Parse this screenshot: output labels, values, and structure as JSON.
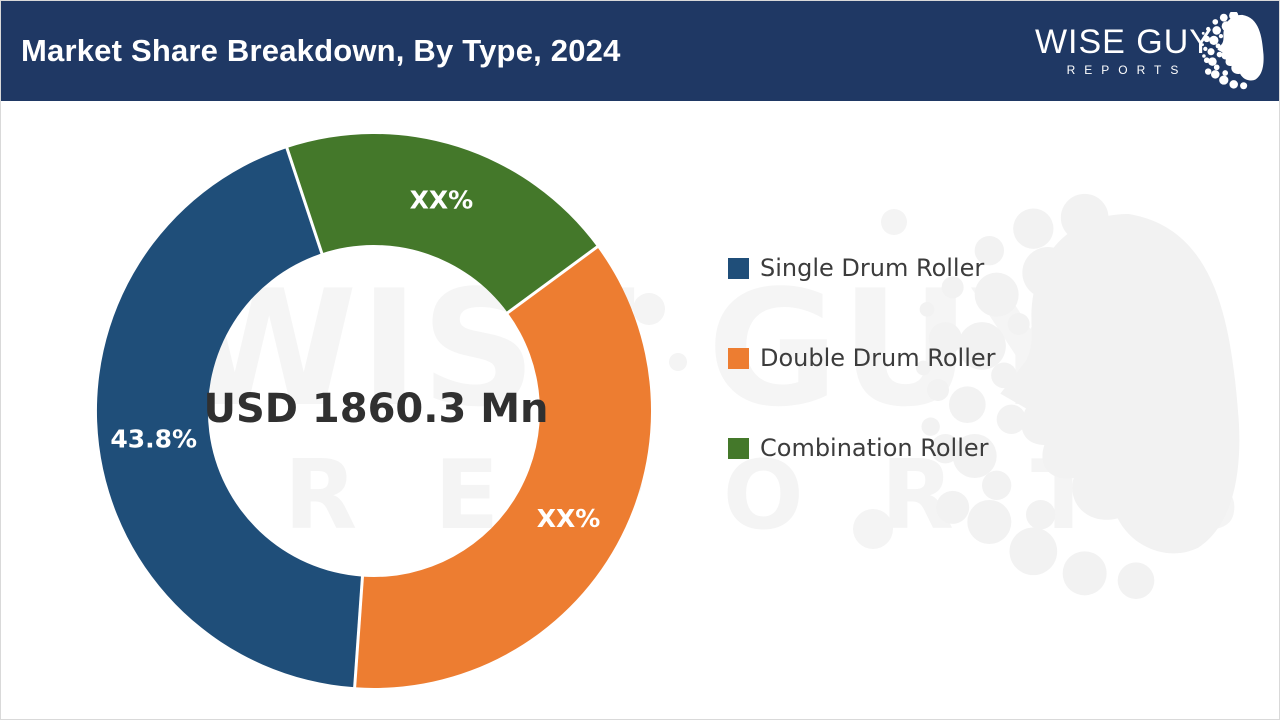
{
  "header": {
    "title": "Market Share Breakdown, By Type, 2024",
    "bg_color": "#1F3864",
    "logo": {
      "name": "WISE GUY",
      "tagline": "REPORTS"
    }
  },
  "watermark": {
    "wordmark": "WISE GUY",
    "tagline": "R E P O R T S"
  },
  "chart_data": {
    "type": "pie",
    "subtype": "donut",
    "title": "Market Share Breakdown, By Type, 2024",
    "center_label": "USD 1860.3 Mn",
    "legend_position": "right",
    "start_angle_deg": 184,
    "draw_order": [
      0,
      2,
      1
    ],
    "segments": [
      {
        "label": "Single Drum Roller",
        "value_pct": 43.8,
        "display_label": "43.8%",
        "color": "#1F4E79"
      },
      {
        "label": "Double Drum Roller",
        "value_pct": 36.2,
        "display_label": "XX%",
        "color": "#ED7D31"
      },
      {
        "label": "Combination Roller",
        "value_pct": 20.0,
        "display_label": "XX%",
        "color": "#44782A"
      }
    ]
  }
}
